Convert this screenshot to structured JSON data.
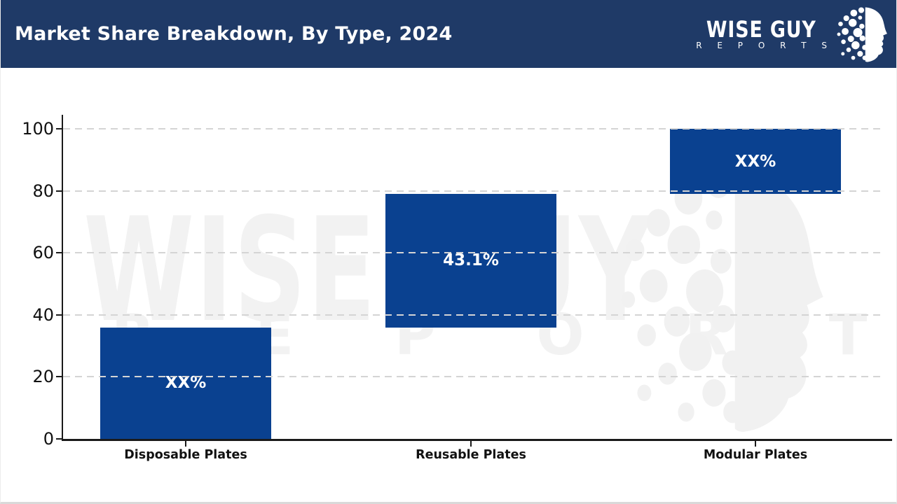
{
  "header": {
    "title": "Market Share Breakdown, By Type, 2024",
    "background_color": "#1f3a67",
    "logo_name": "WISE GUY",
    "logo_subtitle": "R E P O R T S"
  },
  "watermark": {
    "line1": "WISE GUY",
    "line2": "R E P O R T S"
  },
  "chart_data": {
    "type": "bar",
    "subtype": "waterfall",
    "title": "Market Share Breakdown, By Type, 2024",
    "categories": [
      "Disposable Plates",
      "Reusable Plates",
      "Modular Plates"
    ],
    "bars": [
      {
        "category": "Disposable Plates",
        "start": 0,
        "end": 35.9,
        "label": "XX%"
      },
      {
        "category": "Reusable Plates",
        "start": 35.9,
        "end": 79.0,
        "label": "43.1%"
      },
      {
        "category": "Modular Plates",
        "start": 79.0,
        "end": 100,
        "label": "XX%"
      }
    ],
    "y_ticks": [
      0,
      20,
      40,
      60,
      80,
      100
    ],
    "ylim": [
      0,
      105
    ],
    "xlabel": "",
    "ylabel": "",
    "bar_color": "#0a4190",
    "grid": "horizontal-dashed",
    "gridline_color": "#d4d4d4",
    "label_color": "#ffffff"
  }
}
